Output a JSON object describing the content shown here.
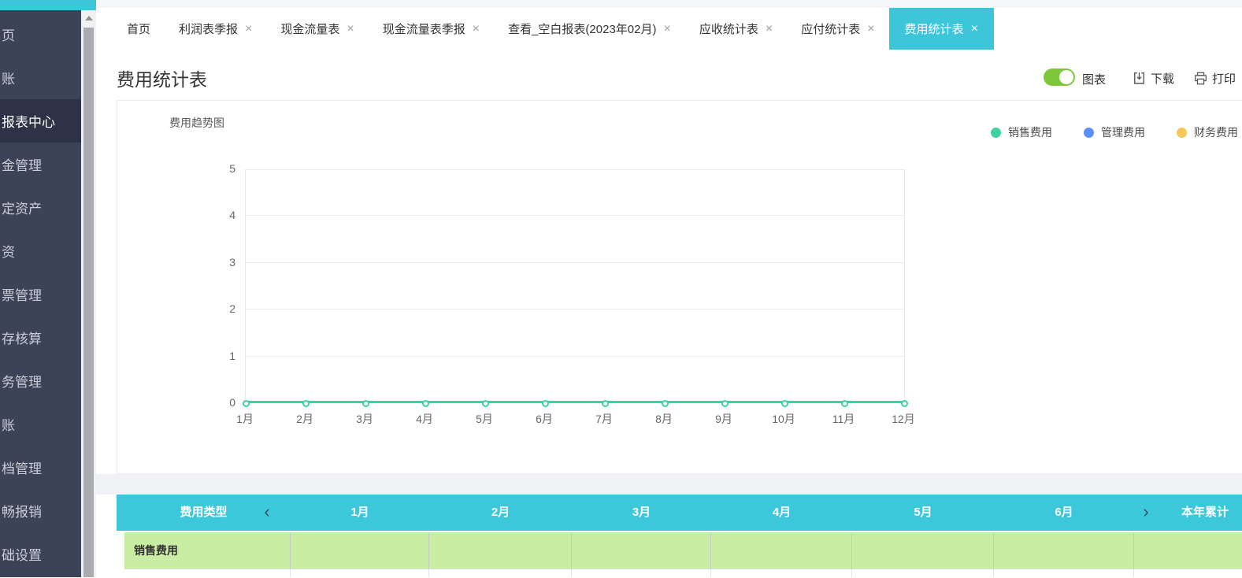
{
  "sidebar": {
    "items": [
      {
        "label": "页",
        "selected": false
      },
      {
        "label": "账",
        "selected": false
      },
      {
        "label": "报表中心",
        "selected": true
      },
      {
        "label": "金管理",
        "selected": false
      },
      {
        "label": "定资产",
        "selected": false
      },
      {
        "label": "资",
        "selected": false
      },
      {
        "label": "票管理",
        "selected": false
      },
      {
        "label": "存核算",
        "selected": false
      },
      {
        "label": "务管理",
        "selected": false
      },
      {
        "label": "账",
        "selected": false
      },
      {
        "label": "档管理",
        "selected": false
      },
      {
        "label": "畅报销",
        "selected": false
      },
      {
        "label": "础设置",
        "selected": false
      }
    ]
  },
  "tabs": [
    {
      "label": "首页",
      "closable": false,
      "active": false
    },
    {
      "label": "利润表季报",
      "closable": true,
      "active": false
    },
    {
      "label": "现金流量表",
      "closable": true,
      "active": false
    },
    {
      "label": "现金流量表季报",
      "closable": true,
      "active": false
    },
    {
      "label": "查看_空白报表(2023年02月)",
      "closable": true,
      "active": false
    },
    {
      "label": "应收统计表",
      "closable": true,
      "active": false
    },
    {
      "label": "应付统计表",
      "closable": true,
      "active": false
    },
    {
      "label": "费用统计表",
      "closable": true,
      "active": true
    }
  ],
  "page": {
    "title": "费用统计表"
  },
  "toolbar": {
    "chart_toggle_label": "图表",
    "chart_toggle_on": true,
    "download_label": "下载",
    "print_label": "打印"
  },
  "chart_data": {
    "type": "line",
    "title": "费用趋势图",
    "categories": [
      "1月",
      "2月",
      "3月",
      "4月",
      "5月",
      "6月",
      "7月",
      "8月",
      "9月",
      "10月",
      "11月",
      "12月"
    ],
    "series": [
      {
        "name": "销售费用",
        "color": "#3fd0a4",
        "values": [
          0,
          0,
          0,
          0,
          0,
          0,
          0,
          0,
          0,
          0,
          0,
          0
        ]
      },
      {
        "name": "管理费用",
        "color": "#5b8ff9",
        "values": [
          0,
          0,
          0,
          0,
          0,
          0,
          0,
          0,
          0,
          0,
          0,
          0
        ]
      },
      {
        "name": "财务费用",
        "color": "#f6c75c",
        "values": [
          0,
          0,
          0,
          0,
          0,
          0,
          0,
          0,
          0,
          0,
          0,
          0
        ]
      }
    ],
    "ylim": [
      0,
      5
    ],
    "yticks": [
      0,
      1,
      2,
      3,
      4,
      5
    ],
    "grid": true,
    "legend_position": "top-right"
  },
  "table": {
    "columns": [
      "费用类型",
      "1月",
      "2月",
      "3月",
      "4月",
      "5月",
      "6月",
      "本年累计"
    ],
    "prev_label": "‹",
    "next_label": "›",
    "rows": [
      {
        "name": "销售费用",
        "values": [
          "",
          "",
          "",
          "",
          "",
          "",
          ""
        ]
      }
    ]
  },
  "colors": {
    "accent_teal": "#3dc6da",
    "sidebar_bg": "#3d4356",
    "sidebar_selected_bg": "#2e3246",
    "toggle_green": "#7cc83a",
    "row_green": "#c8eda3"
  }
}
